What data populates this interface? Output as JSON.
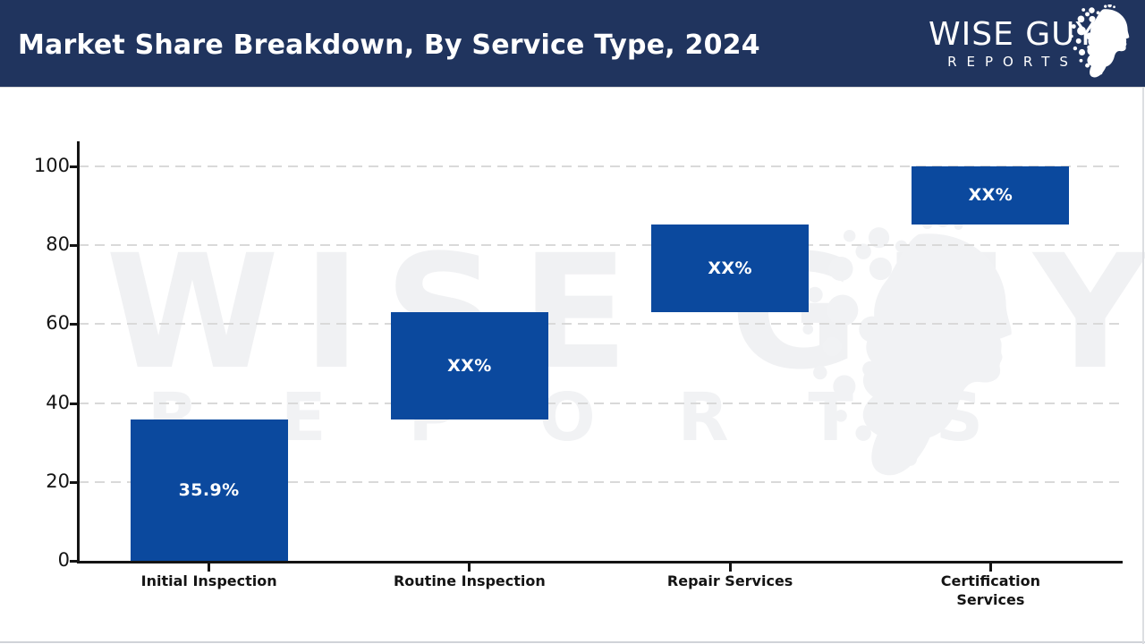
{
  "header": {
    "title": "Market Share Breakdown, By Service Type, 2024",
    "logo": {
      "name_line": "WISE GUY",
      "sub_line": "REPORTS"
    }
  },
  "watermark": {
    "line1": "WISE GUY",
    "line2": "REPORTS"
  },
  "colors": {
    "header_bg": "#20345E",
    "bar": "#0B499E",
    "bar_label": "#FFFFFF",
    "grid": "#D9D9D9",
    "watermark": "#F0F1F3"
  },
  "chart_data": {
    "type": "bar",
    "subtype": "waterfall",
    "title": "Market Share Breakdown, By Service Type, 2024",
    "xlabel": "",
    "ylabel": "",
    "ylim": [
      0,
      100
    ],
    "yticks": [
      0,
      20,
      40,
      60,
      80,
      100
    ],
    "grid": "horizontal-dashed",
    "legend": "none",
    "categories": [
      "Initial Inspection",
      "Routine Inspection",
      "Repair Services",
      "Certification Services"
    ],
    "segments": [
      {
        "category": "Initial Inspection",
        "start": 0,
        "end": 35.9,
        "label": "35.9%"
      },
      {
        "category": "Routine Inspection",
        "start": 35.9,
        "end": 63.0,
        "label": "XX%"
      },
      {
        "category": "Repair Services",
        "start": 63.0,
        "end": 85.3,
        "label": "XX%"
      },
      {
        "category": "Certification Services",
        "start": 85.3,
        "end": 100,
        "label": "XX%"
      }
    ]
  }
}
